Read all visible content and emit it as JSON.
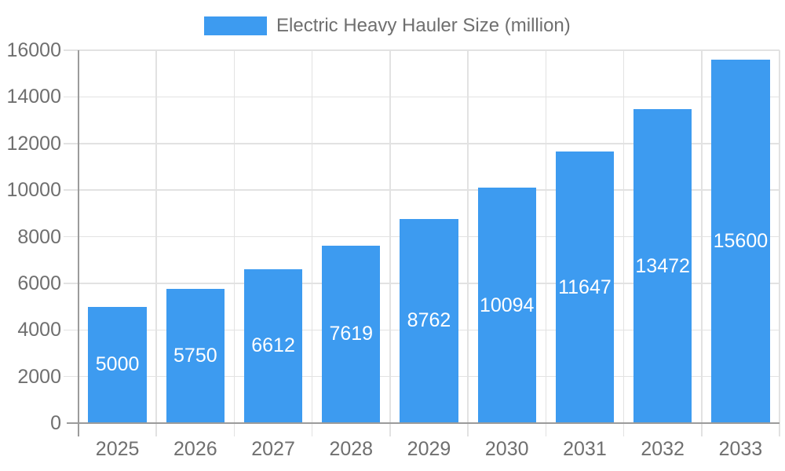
{
  "chart_data": {
    "type": "bar",
    "series_name": "Electric Heavy Hauler Size (million)",
    "categories": [
      "2025",
      "2026",
      "2027",
      "2028",
      "2029",
      "2030",
      "2031",
      "2032",
      "2033"
    ],
    "values": [
      5000,
      5750,
      6612,
      7619,
      8762,
      10094,
      11647,
      13472,
      15600
    ],
    "ylim": [
      0,
      16000
    ],
    "ytick_step": 2000,
    "ytick_labels": [
      "0",
      "2000",
      "4000",
      "6000",
      "8000",
      "10000",
      "12000",
      "14000",
      "16000"
    ],
    "grid": true,
    "legend_position": "top",
    "value_label_position": "inside-center",
    "colors": {
      "bar": "#3D9BF0",
      "grid": "#E2E2E2",
      "axis": "#9B9B9B",
      "tick_label": "#6F6F6F",
      "legend_text": "#6F6F6F",
      "value_label": "#FFFFFF",
      "background": "#FFFFFF"
    }
  }
}
